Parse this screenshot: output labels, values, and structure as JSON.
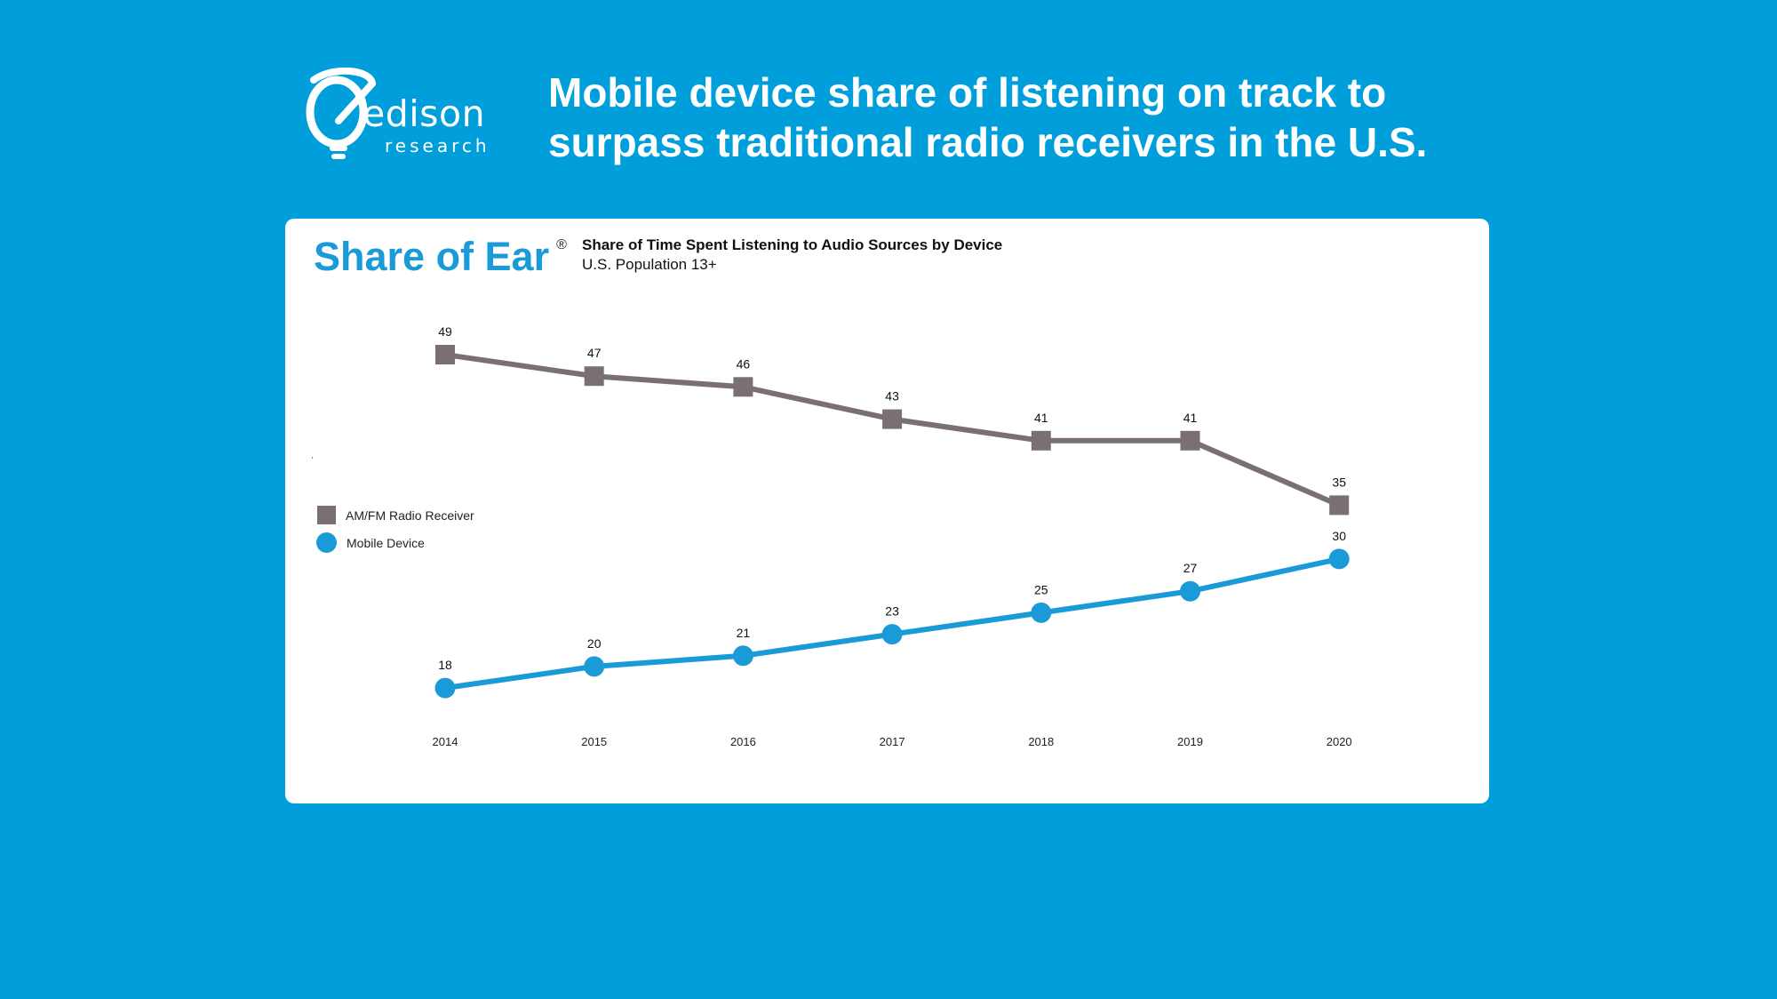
{
  "logo": {
    "word": "edison",
    "sub": "research"
  },
  "headline": {
    "line1": "Mobile device share of listening on track to",
    "line2": "surpass traditional radio receivers in the U.S."
  },
  "brand": {
    "name": "Share of Ear",
    "mark": "®"
  },
  "colors": {
    "background": "#009fdb",
    "radio": "#7a7072",
    "mobile": "#1a9bd7"
  },
  "chart_data": {
    "type": "line",
    "title": "Share of Time Spent Listening to Audio Sources by Device",
    "subtitle": "U.S. Population 13+",
    "x": [
      "2014",
      "2015",
      "2016",
      "2017",
      "2018",
      "2019",
      "2020"
    ],
    "series": [
      {
        "name": "AM/FM Radio Receiver",
        "marker": "square",
        "color": "#7a7072",
        "values": [
          49,
          47,
          46,
          43,
          41,
          41,
          35
        ]
      },
      {
        "name": "Mobile Device",
        "marker": "circle",
        "color": "#1a9bd7",
        "values": [
          18,
          20,
          21,
          23,
          25,
          27,
          30
        ]
      }
    ],
    "legend": "left",
    "grid": false,
    "y_axis_visible": false
  }
}
